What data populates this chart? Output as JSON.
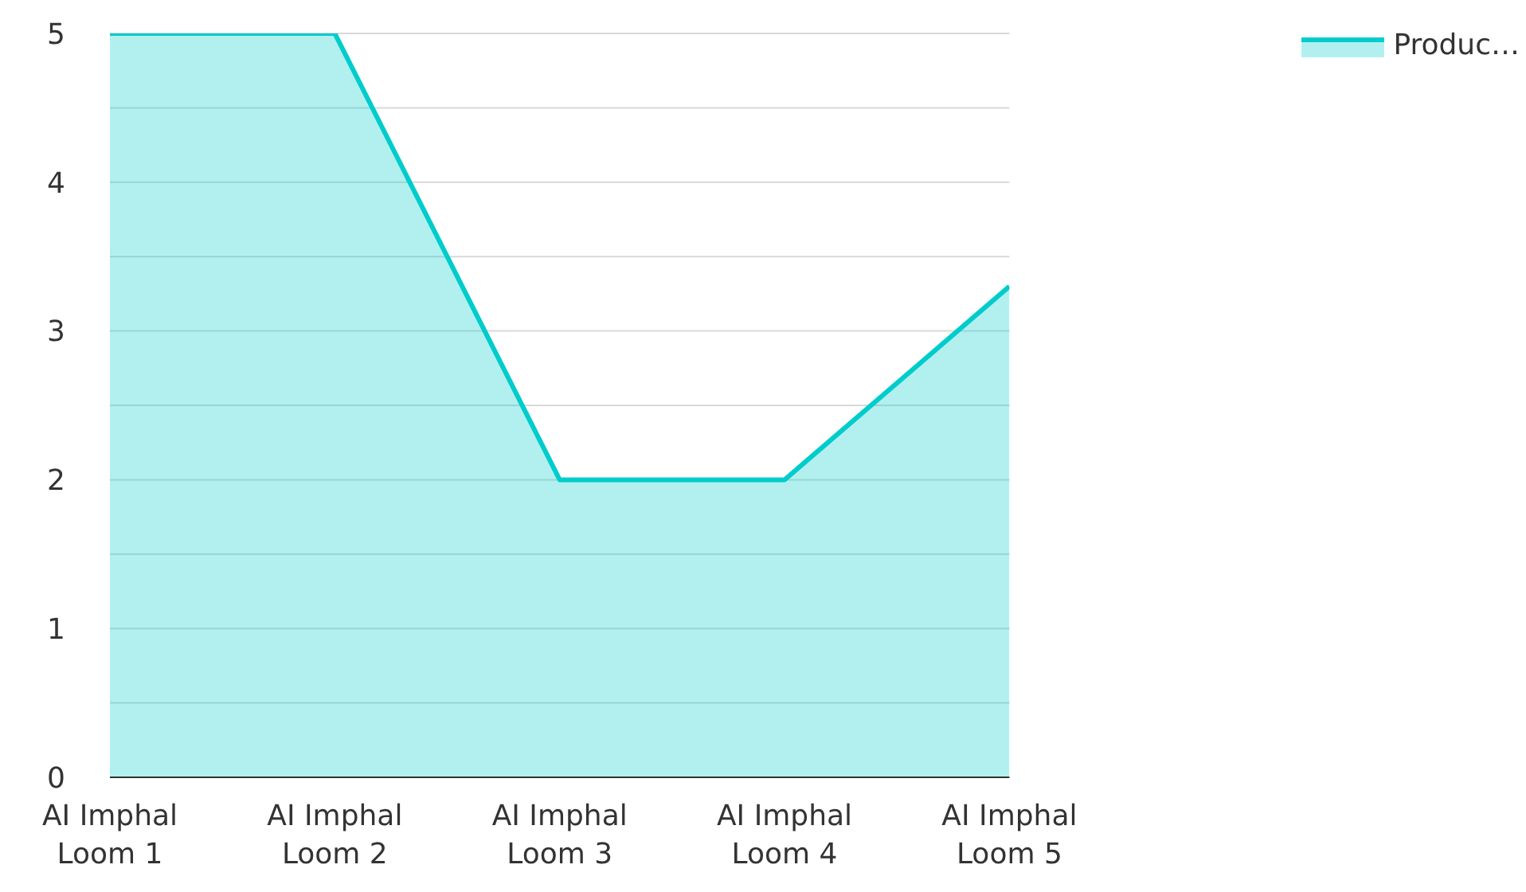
{
  "chart_data": {
    "type": "area",
    "categories": [
      "AI Imphal Loom 1",
      "AI Imphal Loom 2",
      "AI Imphal Loom 3",
      "AI Imphal Loom 4",
      "AI Imphal Loom 5"
    ],
    "series": [
      {
        "name": "Produc…",
        "color": "#00cccc",
        "values": [
          5,
          5,
          2,
          2,
          3.3
        ]
      }
    ],
    "ylim": [
      0,
      5
    ],
    "yticks": [
      0,
      {
        "value": 0.5,
        "label": null
      },
      1,
      {
        "value": 1.5,
        "label": null
      },
      2,
      {
        "value": 2.5,
        "label": null
      },
      3,
      {
        "value": 3.5,
        "label": null
      },
      4,
      {
        "value": 4.5,
        "label": null
      },
      5
    ],
    "grid": "y",
    "legend": "top right"
  }
}
